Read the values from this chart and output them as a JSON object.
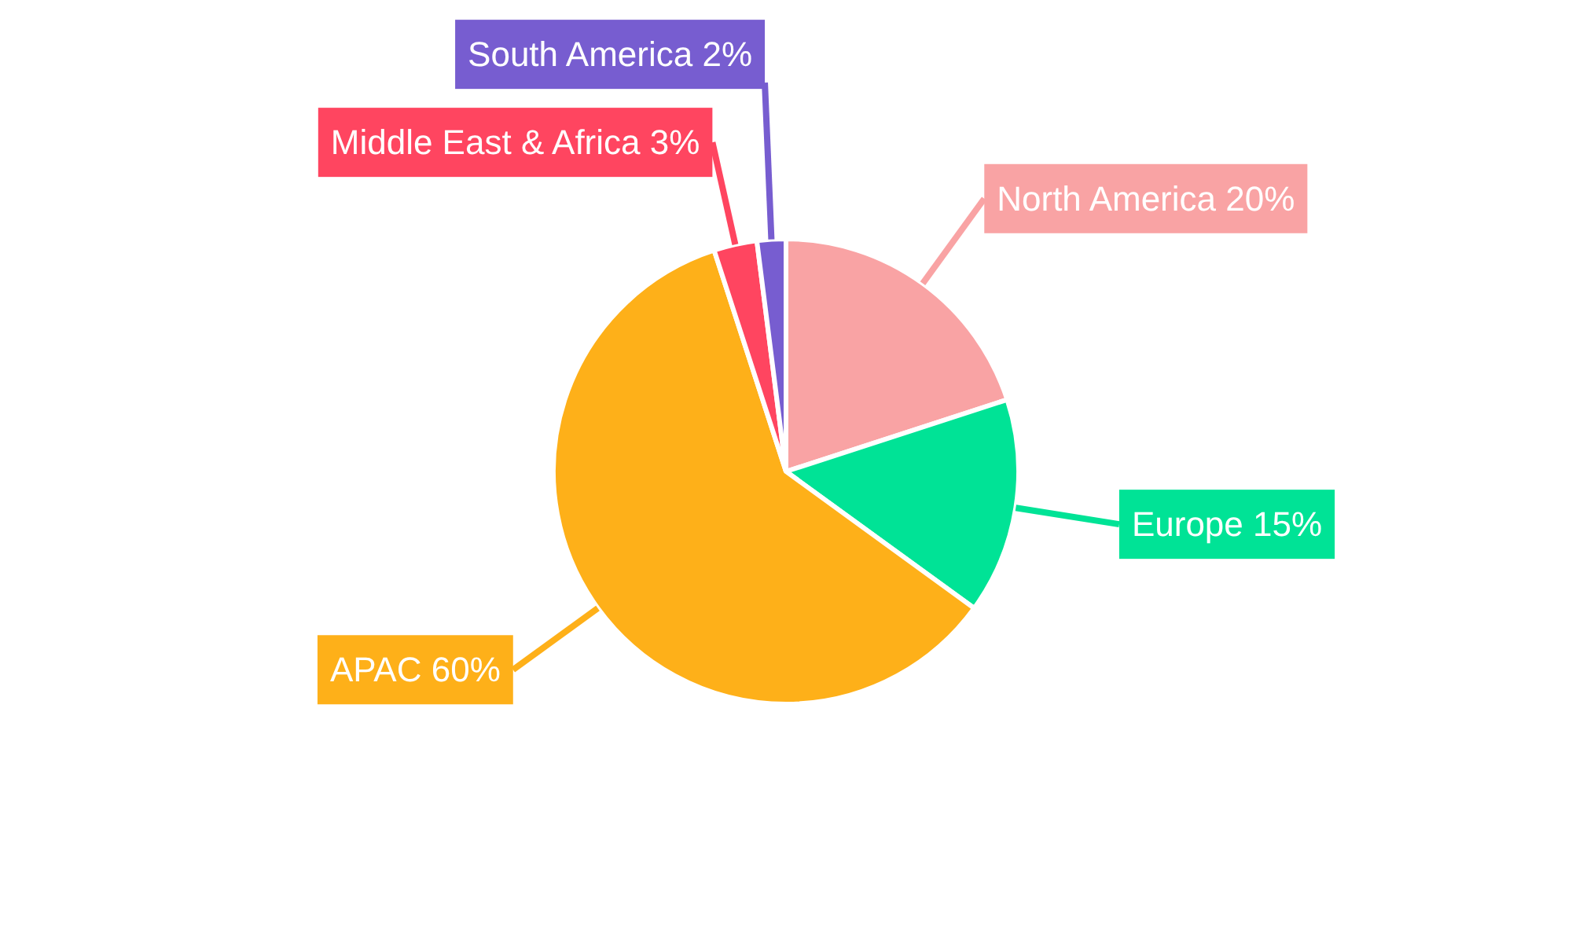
{
  "chart_data": {
    "type": "pie",
    "categories": [
      "North America",
      "Europe",
      "APAC",
      "Middle East & Africa",
      "South America"
    ],
    "values": [
      20,
      15,
      60,
      3,
      2
    ],
    "value_labels": [
      "20%",
      "15%",
      "60%",
      "3%",
      "2%"
    ],
    "colors": [
      "#f9a3a4",
      "#00e396",
      "#feb019",
      "#ff4560",
      "#775dd0"
    ]
  }
}
